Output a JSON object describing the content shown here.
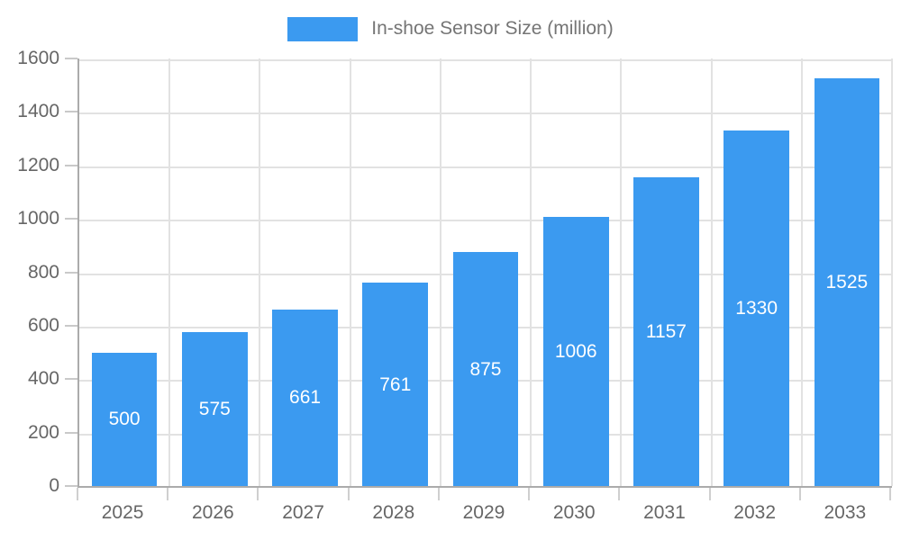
{
  "chart_data": {
    "type": "bar",
    "title": "In-shoe Sensor Size (million)",
    "categories": [
      "2025",
      "2026",
      "2027",
      "2028",
      "2029",
      "2030",
      "2031",
      "2032",
      "2033"
    ],
    "values": [
      500,
      575,
      661,
      761,
      875,
      1006,
      1157,
      1330,
      1525
    ],
    "series_name": "In-shoe Sensor Size (million)",
    "xlabel": "",
    "ylabel": "",
    "ylim": [
      0,
      1600
    ],
    "ytick_step": 200,
    "grid": true,
    "legend_position": "top",
    "bar_labels_inside": true,
    "colors": {
      "bar": "#3b9af0",
      "bar_label": "#ffffff",
      "axis_line": "#ababab",
      "grid_line": "#e2e2e2",
      "tick_mark": "#c9c9c9",
      "axis_label": "#666666",
      "legend_text": "#757575"
    }
  }
}
